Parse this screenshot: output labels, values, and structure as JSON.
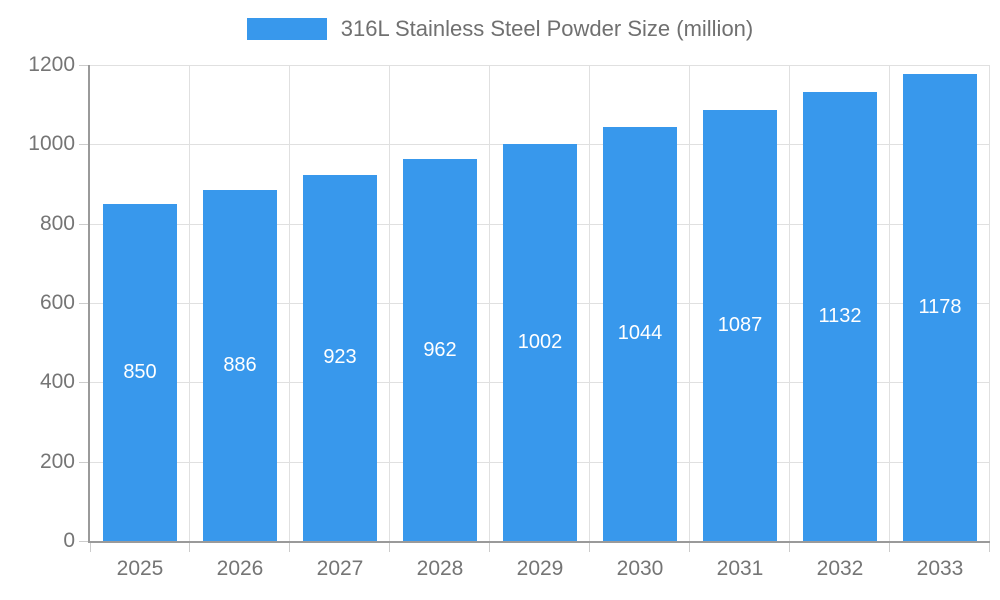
{
  "chart_data": {
    "type": "bar",
    "title": "316L Stainless Steel Powder Size (million)",
    "categories": [
      "2025",
      "2026",
      "2027",
      "2028",
      "2029",
      "2030",
      "2031",
      "2032",
      "2033"
    ],
    "values": [
      850,
      886,
      923,
      962,
      1002,
      1044,
      1087,
      1132,
      1178
    ],
    "xlabel": "",
    "ylabel": "",
    "ylim": [
      0,
      1200
    ],
    "yticks": [
      0,
      200,
      400,
      600,
      800,
      1000,
      1200
    ],
    "grid": true,
    "legend_position": "top-center",
    "value_labels": "inside-center"
  },
  "colors": {
    "bar": "#3898EC",
    "grid": "#e0e0e0",
    "axis": "#9a9a9a",
    "tick": "#cccccc",
    "axis_text": "#757575",
    "legend_text": "#707070",
    "value_label_text": "#ffffff",
    "background": "#ffffff"
  }
}
